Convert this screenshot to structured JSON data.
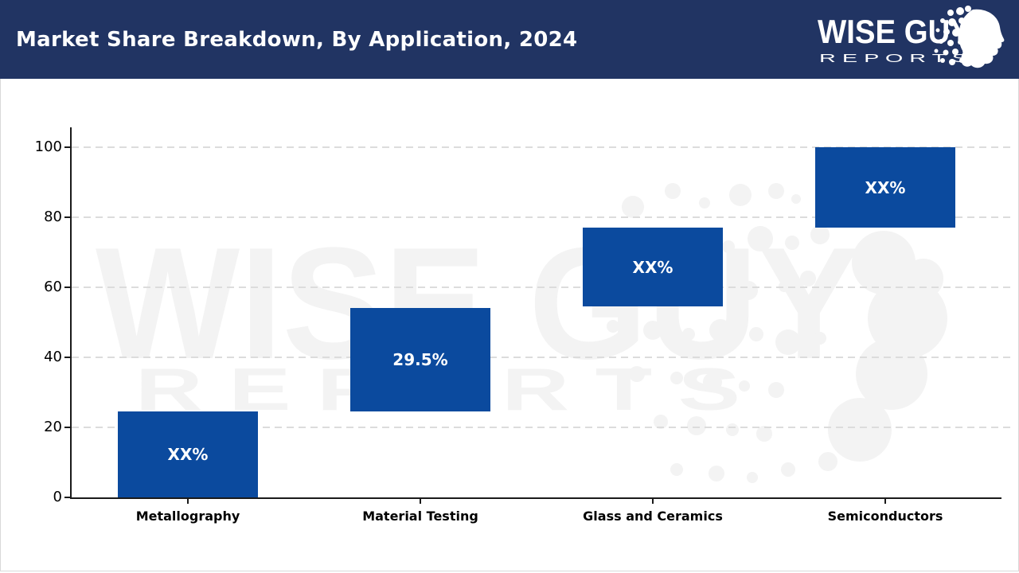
{
  "header": {
    "title": "Market Share Breakdown, By Application, 2024",
    "bg_color": "#213463",
    "logo": {
      "line1": "WISE GUY",
      "line2": "R E P O R T S"
    }
  },
  "watermark": {
    "line1": "WISE GUY",
    "line2": "R E P O R T S"
  },
  "chart_data": {
    "type": "bar",
    "subtype": "floating_segment_waterfall",
    "title": "Market Share Breakdown, By Application, 2024",
    "categories": [
      "Metallography",
      "Material Testing",
      "Glass and Ceramics",
      "Semiconductors"
    ],
    "segments": [
      {
        "category": "Metallography",
        "start": 0,
        "end": 24.5,
        "height_pct": 24.5,
        "label": "XX%"
      },
      {
        "category": "Material Testing",
        "start": 24.5,
        "end": 54,
        "height_pct": 29.5,
        "label": "29.5%"
      },
      {
        "category": "Glass and Ceramics",
        "start": 54.5,
        "end": 77,
        "height_pct": 22.5,
        "label": "XX%"
      },
      {
        "category": "Semiconductors",
        "start": 77,
        "end": 100,
        "height_pct": 23,
        "label": "XX%"
      }
    ],
    "xlabel": "",
    "ylabel": "",
    "ylim": [
      0,
      100
    ],
    "yticks": [
      0,
      20,
      40,
      60,
      80,
      100
    ],
    "grid": {
      "horizontal": true,
      "style": "dashed",
      "color": "#dcdcdc"
    },
    "legend": "none",
    "bar_color": "#0b4a9e",
    "bar_label_color": "#ffffff",
    "axis_color": "#1a1a1a",
    "tick_label_color": "#000000"
  }
}
